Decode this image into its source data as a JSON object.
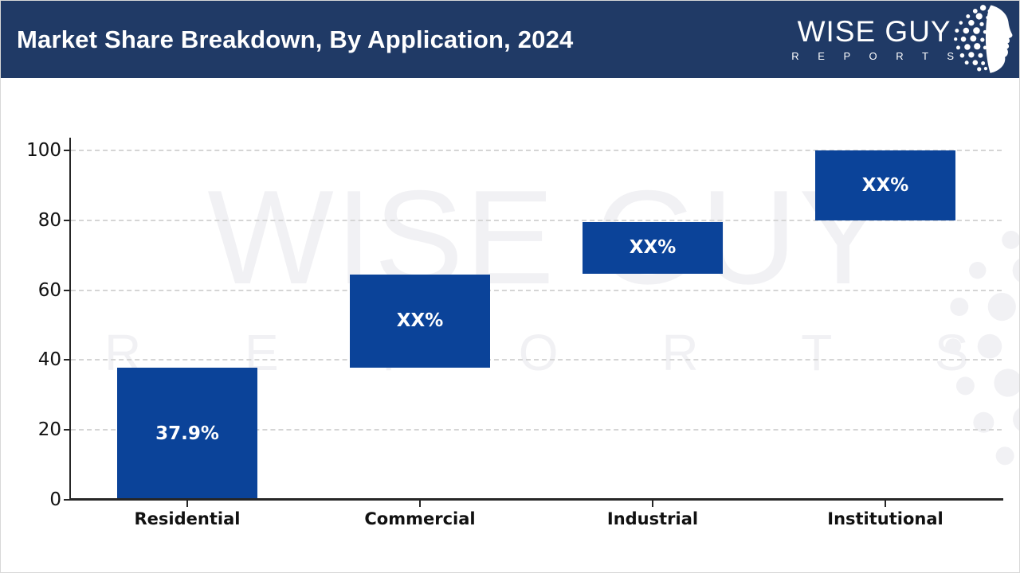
{
  "header": {
    "title": "Market Share Breakdown, By Application, 2024",
    "logo": {
      "line1": "WISE GUY",
      "line2": "R E P O R T S"
    }
  },
  "watermark": {
    "line1": "WISE GUY",
    "line2": "R E P O R T S"
  },
  "colors": {
    "navy": "#203a66",
    "bar": "#0b4399",
    "bar_label": "#ffffff",
    "watermark": "#f1f1f4",
    "grid": "#d5d5d5",
    "axis": "#262626"
  },
  "chart_data": {
    "type": "bar",
    "variant": "waterfall-floating",
    "title": "Market Share Breakdown, By Application, 2024",
    "categories": [
      "Residential",
      "Commercial",
      "Industrial",
      "Institutional"
    ],
    "segments": [
      {
        "category": "Residential",
        "start": 0,
        "end": 37.9,
        "label": "37.9%"
      },
      {
        "category": "Commercial",
        "start": 37.9,
        "end": 64.5,
        "label": "XX%"
      },
      {
        "category": "Industrial",
        "start": 64.7,
        "end": 79.5,
        "label": "XX%"
      },
      {
        "category": "Institutional",
        "start": 80.0,
        "end": 100.0,
        "label": "XX%"
      }
    ],
    "yticks": [
      0,
      20,
      40,
      60,
      80,
      100
    ],
    "ylim": [
      0,
      104
    ],
    "xlabel": "",
    "ylabel": "",
    "grid": "horizontal-dashed",
    "legend": "none"
  }
}
